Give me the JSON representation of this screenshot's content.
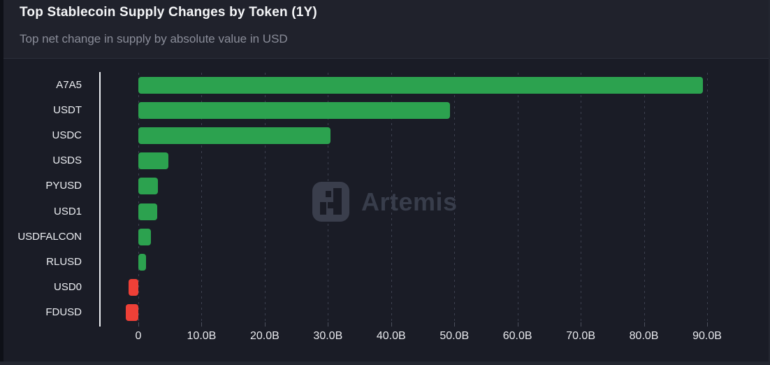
{
  "header": {
    "title": "Top Stablecoin Supply Changes by Token (1Y)",
    "subtitle": "Top net change in supply by absolute value in USD"
  },
  "watermark": {
    "text": "Artemis",
    "logo_icon": "artemis-logo-icon"
  },
  "chart_data": {
    "type": "bar",
    "orientation": "horizontal",
    "title": "Top Stablecoin Supply Changes by Token (1Y)",
    "subtitle": "Top net change in supply by absolute value in USD",
    "categories": [
      "A7A5",
      "USDT",
      "USDC",
      "USDS",
      "PYUSD",
      "USD1",
      "USDFALCON",
      "RLUSD",
      "USD0",
      "FDUSD"
    ],
    "values": [
      89.3,
      49.3,
      30.4,
      4.7,
      3.1,
      3.0,
      2.0,
      1.2,
      -1.5,
      -2.0
    ],
    "unit": "USD billions",
    "xlabel": "",
    "ylabel": "",
    "xlim": [
      -6,
      98.5
    ],
    "x_ticks": [
      {
        "value": 0,
        "label": "0"
      },
      {
        "value": 10,
        "label": "10.0B"
      },
      {
        "value": 20,
        "label": "20.0B"
      },
      {
        "value": 30,
        "label": "30.0B"
      },
      {
        "value": 40,
        "label": "40.0B"
      },
      {
        "value": 50,
        "label": "50.0B"
      },
      {
        "value": 60,
        "label": "60.0B"
      },
      {
        "value": 70,
        "label": "70.0B"
      },
      {
        "value": 80,
        "label": "80.0B"
      },
      {
        "value": 90,
        "label": "90.0B"
      }
    ],
    "grid": "vertical-dashed",
    "legend": "none",
    "positive_color": "#2ca24f",
    "negative_color": "#ee4037",
    "background_color": "#1a1c26",
    "axis_line_color": "#eef0f3"
  }
}
